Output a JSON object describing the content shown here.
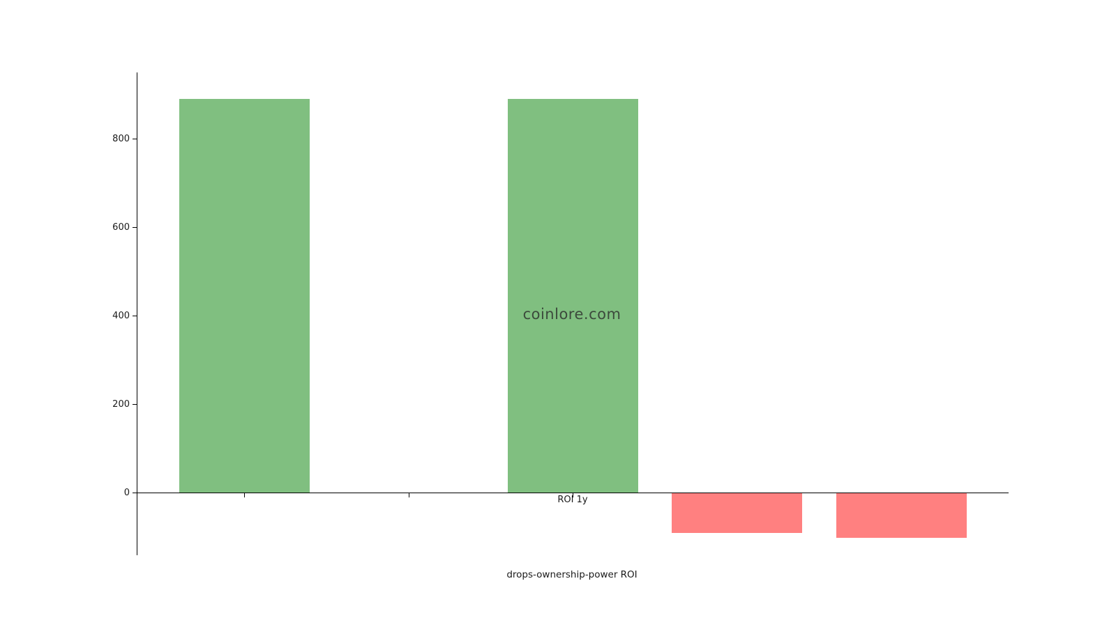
{
  "chart_data": {
    "type": "bar",
    "title": "",
    "xlabel": "drops-ownership-power ROI",
    "ylabel": "",
    "watermark": "coinlore.com",
    "categories": [
      "",
      "",
      "ROI 1y",
      "",
      ""
    ],
    "values": [
      890,
      0,
      890,
      -90,
      -100
    ],
    "positive_color": "#80BF80",
    "negative_color": "#FF8080",
    "axis_color": "#000000",
    "tick_text_color": "#1a1a1a",
    "watermark_color": "#3c4a3c",
    "yticks": [
      0,
      200,
      400,
      600,
      800
    ],
    "ylim": [
      -140,
      950
    ],
    "grid": false,
    "legend_position": "none"
  }
}
